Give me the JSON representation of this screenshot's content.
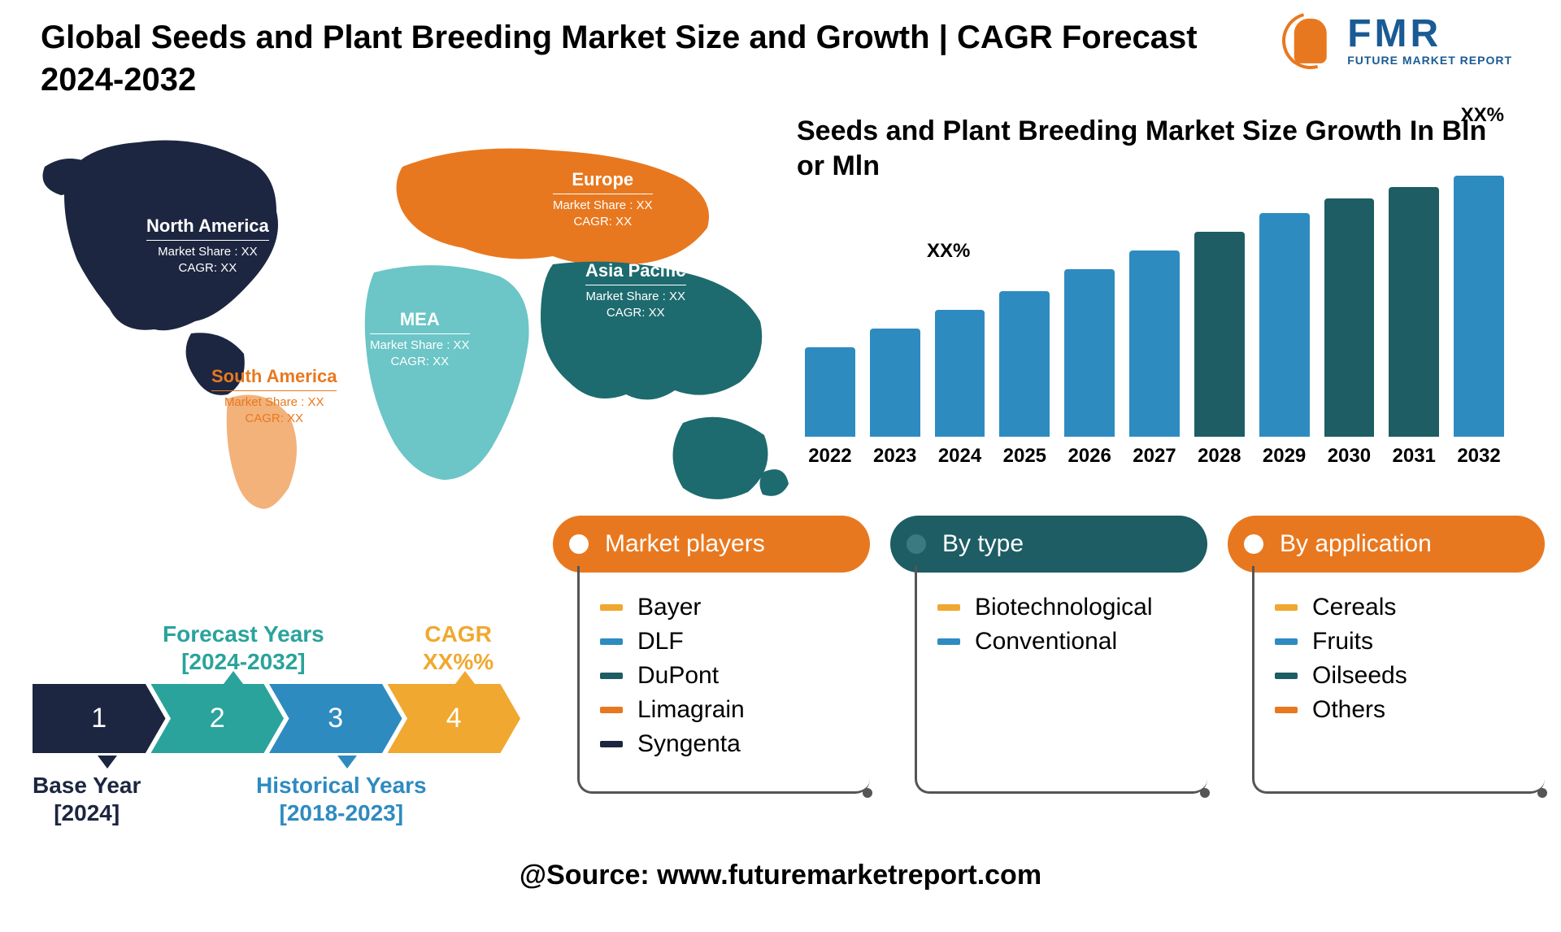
{
  "title_line1": "Global Seeds and Plant Breeding Market Size and Growth | CAGR Forecast",
  "title_line2": " 2024-2032",
  "logo": {
    "fmr": "FMR",
    "sub": "FUTURE MARKET REPORT"
  },
  "colors": {
    "dark_navy": "#1c2640",
    "teal": "#2aa39c",
    "blue": "#2e8bc0",
    "orange": "#e8781f",
    "cyan": "#6cc5c6",
    "dark_teal": "#1d5d63",
    "background": "#ffffff",
    "text": "#000000",
    "bar_primary": "#2e8bc0",
    "bar_alt": "#1d5d63"
  },
  "map": {
    "regions": [
      {
        "name": "North America",
        "sub1": "Market Share : XX",
        "sub2": "CAGR: XX",
        "color": "#1c2640",
        "label_color": "#ffffff"
      },
      {
        "name": "South America",
        "sub1": "Market Share : XX",
        "sub2": "CAGR: XX",
        "color": "#f2b27a",
        "label_color": "#e8781f"
      },
      {
        "name": "Europe",
        "sub1": "Market Share : XX",
        "sub2": "CAGR: XX",
        "color": "#e8781f",
        "label_color": "#ffffff"
      },
      {
        "name": "MEA",
        "sub1": "Market Share : XX",
        "sub2": "CAGR: XX",
        "color": "#6cc5c6",
        "label_color": "#ffffff"
      },
      {
        "name": "Asia Pacific",
        "sub1": "Market Share : XX",
        "sub2": "CAGR: XX",
        "color": "#1d6b6e",
        "label_color": "#ffffff"
      }
    ]
  },
  "chart": {
    "title": "Seeds and Plant Breeding Market Size Growth In Bln or Mln",
    "years": [
      "2022",
      "2023",
      "2024",
      "2025",
      "2026",
      "2027",
      "2028",
      "2029",
      "2030",
      "2031",
      "2032"
    ],
    "values": [
      120,
      145,
      170,
      195,
      225,
      250,
      275,
      300,
      320,
      335,
      350
    ],
    "bar_color": "#2e8bc0",
    "alt_indices": [
      6,
      8,
      9
    ],
    "alt_color": "#1d5d63",
    "anno_2024": "XX%",
    "anno_2032": "XX%",
    "max": 360,
    "label_fontsize": 24,
    "title_fontsize": 34
  },
  "timeline": {
    "chevrons": [
      {
        "num": "1",
        "color": "#1c2640"
      },
      {
        "num": "2",
        "color": "#2aa39c"
      },
      {
        "num": "3",
        "color": "#2e8bc0"
      },
      {
        "num": "4",
        "color": "#f0a830"
      }
    ],
    "labels": {
      "base": {
        "title": "Base Year",
        "sub": "[2024]",
        "color": "#1c2640"
      },
      "forecast": {
        "title": "Forecast Years",
        "sub": "[2024-2032]",
        "color": "#2aa39c"
      },
      "historical": {
        "title": "Historical Years",
        "sub": "[2018-2023]",
        "color": "#2e8bc0"
      },
      "cagr": {
        "title": "CAGR",
        "sub": "XX%%",
        "color": "#f0a830"
      }
    }
  },
  "pills": {
    "market_players": {
      "title": "Market players",
      "header_color": "#e8781f",
      "items": [
        {
          "label": "Bayer",
          "bullet": "#f0a830"
        },
        {
          "label": "DLF",
          "bullet": "#2e8bc0"
        },
        {
          "label": "DuPont",
          "bullet": "#1d5d63"
        },
        {
          "label": "Limagrain",
          "bullet": "#e8781f"
        },
        {
          "label": "Syngenta",
          "bullet": "#1c2640"
        }
      ]
    },
    "by_type": {
      "title": "By type",
      "header_color": "#1d5d63",
      "items": [
        {
          "label": "Biotechnological",
          "bullet": "#f0a830"
        },
        {
          "label": "Conventional",
          "bullet": "#2e8bc0"
        }
      ]
    },
    "by_application": {
      "title": "By application",
      "header_color": "#e8781f",
      "items": [
        {
          "label": "Cereals",
          "bullet": "#f0a830"
        },
        {
          "label": "Fruits",
          "bullet": "#2e8bc0"
        },
        {
          "label": "Oilseeds",
          "bullet": "#1d5d63"
        },
        {
          "label": "Others",
          "bullet": "#e8781f"
        }
      ]
    }
  },
  "source": "@Source: www.futuremarketreport.com"
}
